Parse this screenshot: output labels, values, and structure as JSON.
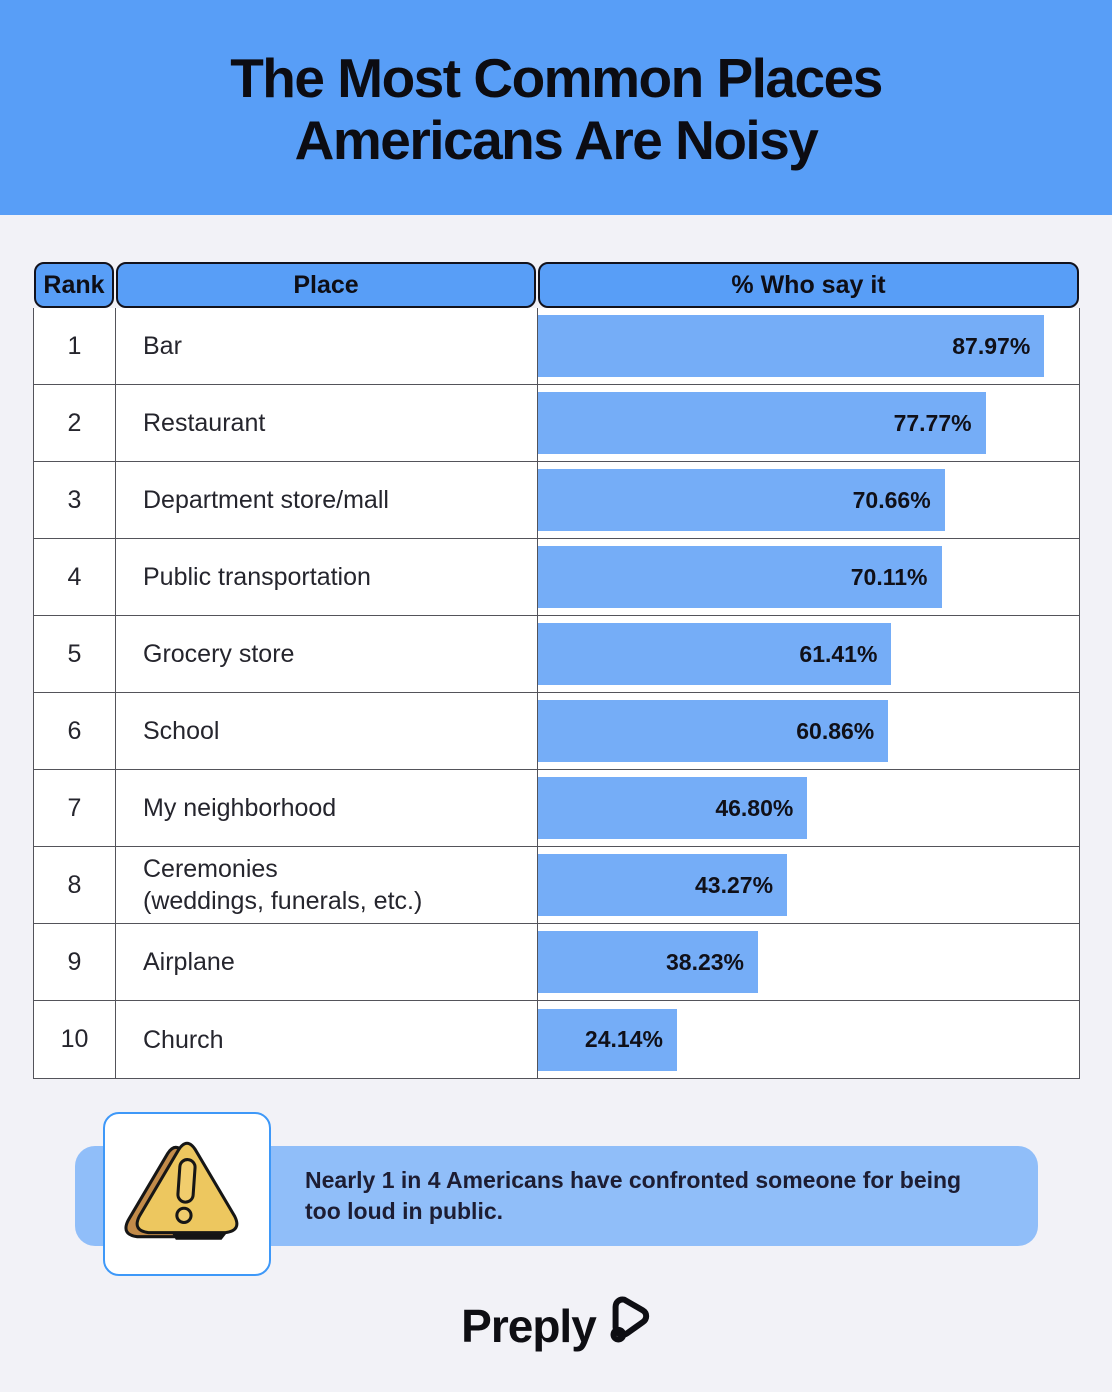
{
  "header": {
    "title": "The Most Common Places\nAmericans Are Noisy"
  },
  "table": {
    "columns": {
      "rank": "Rank",
      "place": "Place",
      "percent": "% Who say it"
    },
    "rows": [
      {
        "rank": "1",
        "place": "Bar",
        "value": 87.97,
        "label": "87.97%"
      },
      {
        "rank": "2",
        "place": "Restaurant",
        "value": 77.77,
        "label": "77.77%"
      },
      {
        "rank": "3",
        "place": "Department store/mall",
        "value": 70.66,
        "label": "70.66%"
      },
      {
        "rank": "4",
        "place": "Public transportation",
        "value": 70.11,
        "label": "70.11%"
      },
      {
        "rank": "5",
        "place": "Grocery store",
        "value": 61.41,
        "label": "61.41%"
      },
      {
        "rank": "6",
        "place": "School",
        "value": 60.86,
        "label": "60.86%"
      },
      {
        "rank": "7",
        "place": "My neighborhood",
        "value": 46.8,
        "label": "46.80%"
      },
      {
        "rank": "8",
        "place": "Ceremonies\n(weddings, funerals, etc.)",
        "value": 43.27,
        "label": "43.27%"
      },
      {
        "rank": "9",
        "place": "Airplane",
        "value": 38.23,
        "label": "38.23%"
      },
      {
        "rank": "10",
        "place": "Church",
        "value": 24.14,
        "label": "24.14%"
      }
    ]
  },
  "callout": {
    "icon": "warning-triangle-icon",
    "text": "Nearly 1 in 4 Americans have confronted someone for being\ntoo loud in public."
  },
  "footer": {
    "brand": "Preply",
    "icon": "preply-bubble-icon"
  },
  "colors": {
    "banner_blue": "#589ef7",
    "bar_blue": "#75adf7",
    "callout_blue": "#90bef9",
    "background": "#f2f2f7",
    "table_border": "#53535a",
    "warning_gold": "#edc75f",
    "warning_gold_light": "#f1cd6d",
    "warning_gold_dark": "#c28b49"
  },
  "chart_data": {
    "type": "bar",
    "orientation": "horizontal",
    "title": "The Most Common Places Americans Are Noisy",
    "columns": [
      "Rank",
      "Place",
      "% Who say it"
    ],
    "categories": [
      "Bar",
      "Restaurant",
      "Department store/mall",
      "Public transportation",
      "Grocery store",
      "School",
      "My neighborhood",
      "Ceremonies (weddings, funerals, etc.)",
      "Airplane",
      "Church"
    ],
    "values": [
      87.97,
      77.77,
      70.66,
      70.11,
      61.41,
      60.86,
      46.8,
      43.27,
      38.23,
      24.14
    ],
    "value_labels": [
      "87.97%",
      "77.77%",
      "70.66%",
      "70.11%",
      "61.41%",
      "60.86%",
      "46.80%",
      "43.27%",
      "38.23%",
      "24.14%"
    ],
    "xlim": [
      0,
      94
    ],
    "grid": false,
    "legend": false,
    "bar_color": "#75adf7",
    "annotation": "Nearly 1 in 4 Americans have confronted someone for being too loud in public.",
    "source_brand": "Preply"
  }
}
